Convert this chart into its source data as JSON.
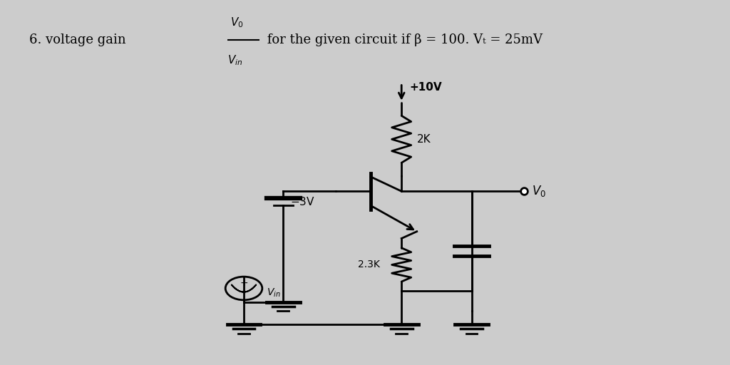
{
  "fig_width": 10.24,
  "fig_height": 5.12,
  "bg_color": "#cccccc",
  "circuit_bg": "#b8b8b8",
  "text_color": "#000000",
  "title_prefix": "6. voltage gain ",
  "title_suffix": " for the given circuit if β = 100. Vₜ = 25mV",
  "vcc_label": "+10V",
  "rc_label": "2K",
  "re_label": "2.3K",
  "vbb_label": "3V",
  "vo_label": "V₀",
  "vin_label": "Vᴵₙ"
}
